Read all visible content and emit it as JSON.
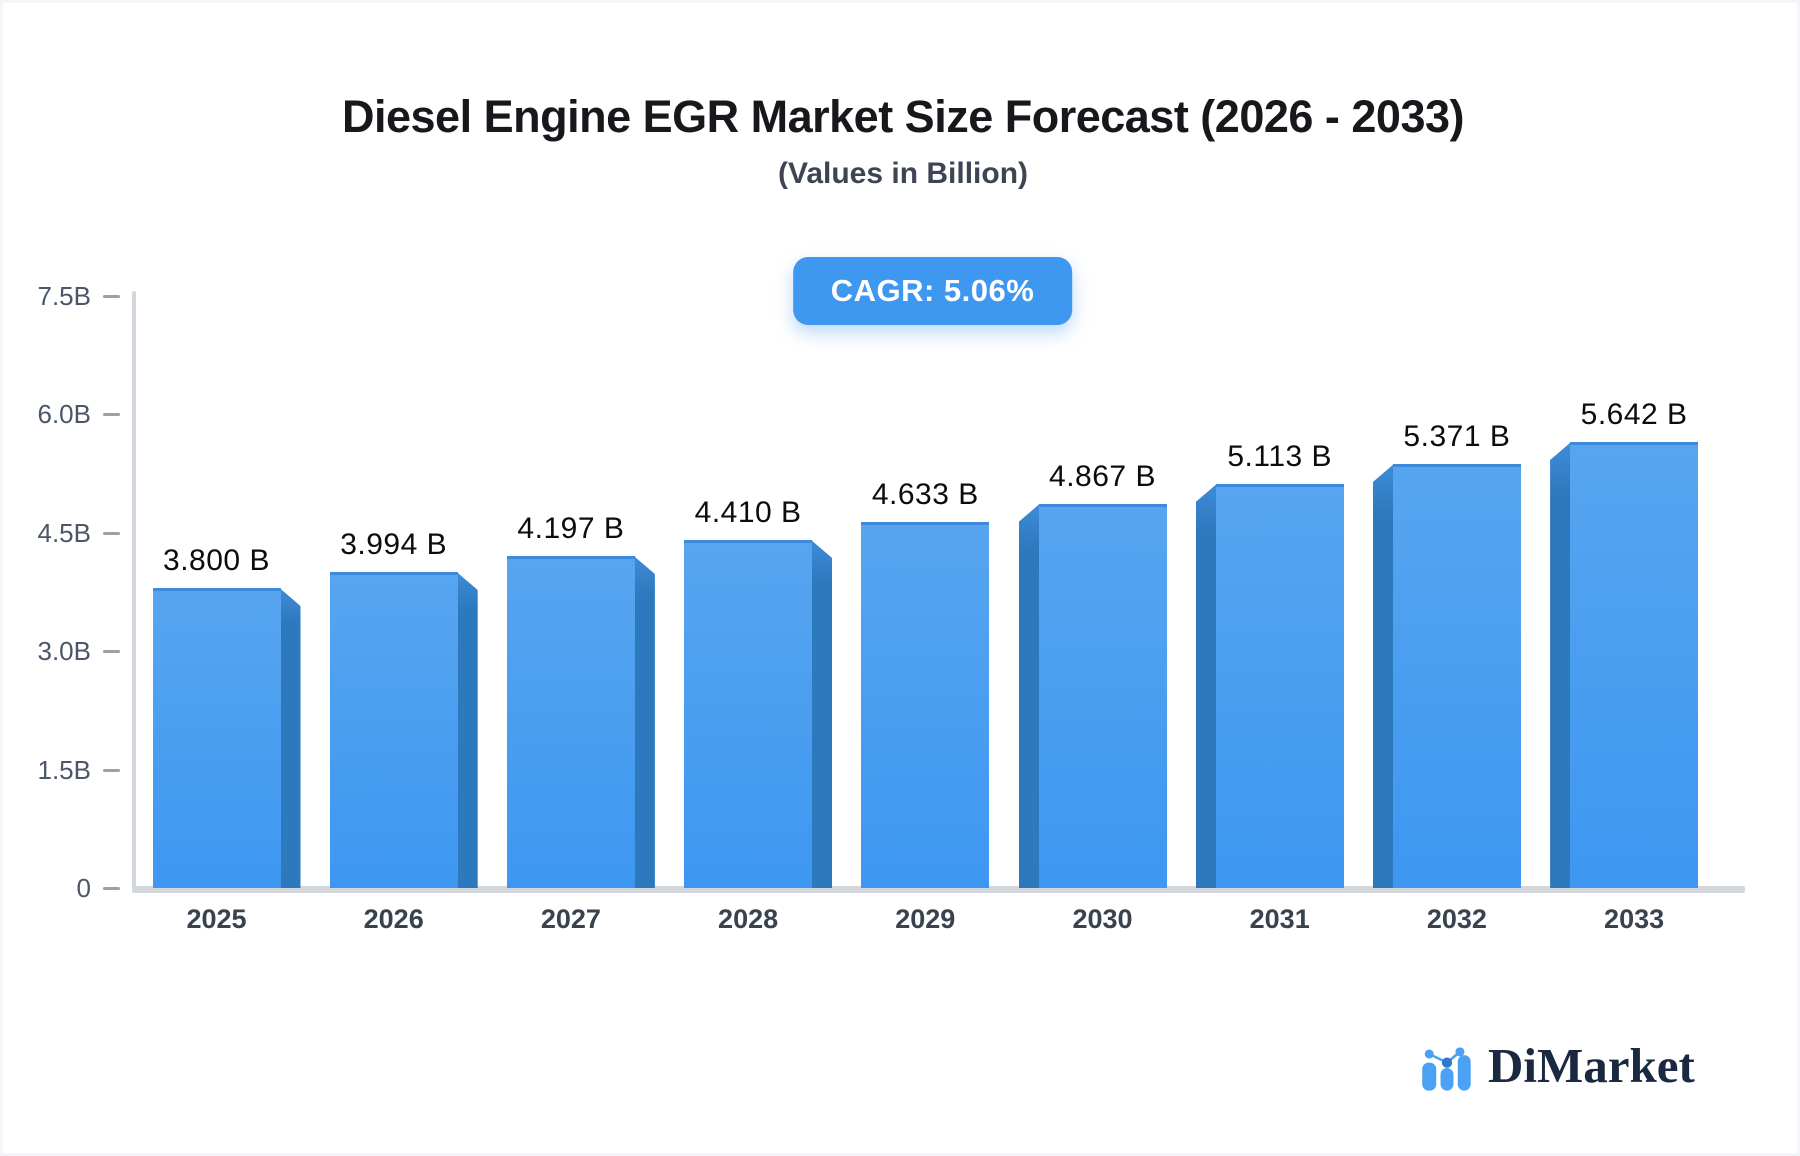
{
  "chart_data": {
    "type": "bar",
    "title": "Diesel Engine EGR Market Size Forecast (2026 - 2033)",
    "subtitle": "(Values in Billion)",
    "badge_label": "CAGR: 5.06%",
    "categories": [
      "2025",
      "2026",
      "2027",
      "2028",
      "2029",
      "2030",
      "2031",
      "2032",
      "2033"
    ],
    "values": [
      3.8,
      3.994,
      4.197,
      4.41,
      4.633,
      4.867,
      5.113,
      5.371,
      5.642
    ],
    "value_labels": [
      "3.800 B",
      "3.994 B",
      "4.197 B",
      "4.410 B",
      "4.633 B",
      "4.867 B",
      "5.113 B",
      "5.371 B",
      "5.642 B"
    ],
    "ylim": [
      0,
      7.5
    ],
    "yticks": [
      {
        "label": "7.5B",
        "value": 7.5
      },
      {
        "label": "6.0B",
        "value": 6.0
      },
      {
        "label": "4.5B",
        "value": 4.5
      },
      {
        "label": "3.0B",
        "value": 3.0
      },
      {
        "label": "1.5B",
        "value": 1.5
      },
      {
        "label": "0",
        "value": 0
      }
    ],
    "grid": "off",
    "legend": "none",
    "colors": {
      "bar_face_top": "#57a5f0",
      "bar_face_bottom": "#3d97f1",
      "bar_face_edge": "#3e8bd9",
      "bar_side": "#2d79bd",
      "badge_bg": "#3f98f0",
      "badge_text": "#ffffff"
    }
  },
  "logo": {
    "brand_name": "DiMarket",
    "icon_blue": "#4ba1f3",
    "icon_dot_dark": "#3277cc"
  }
}
